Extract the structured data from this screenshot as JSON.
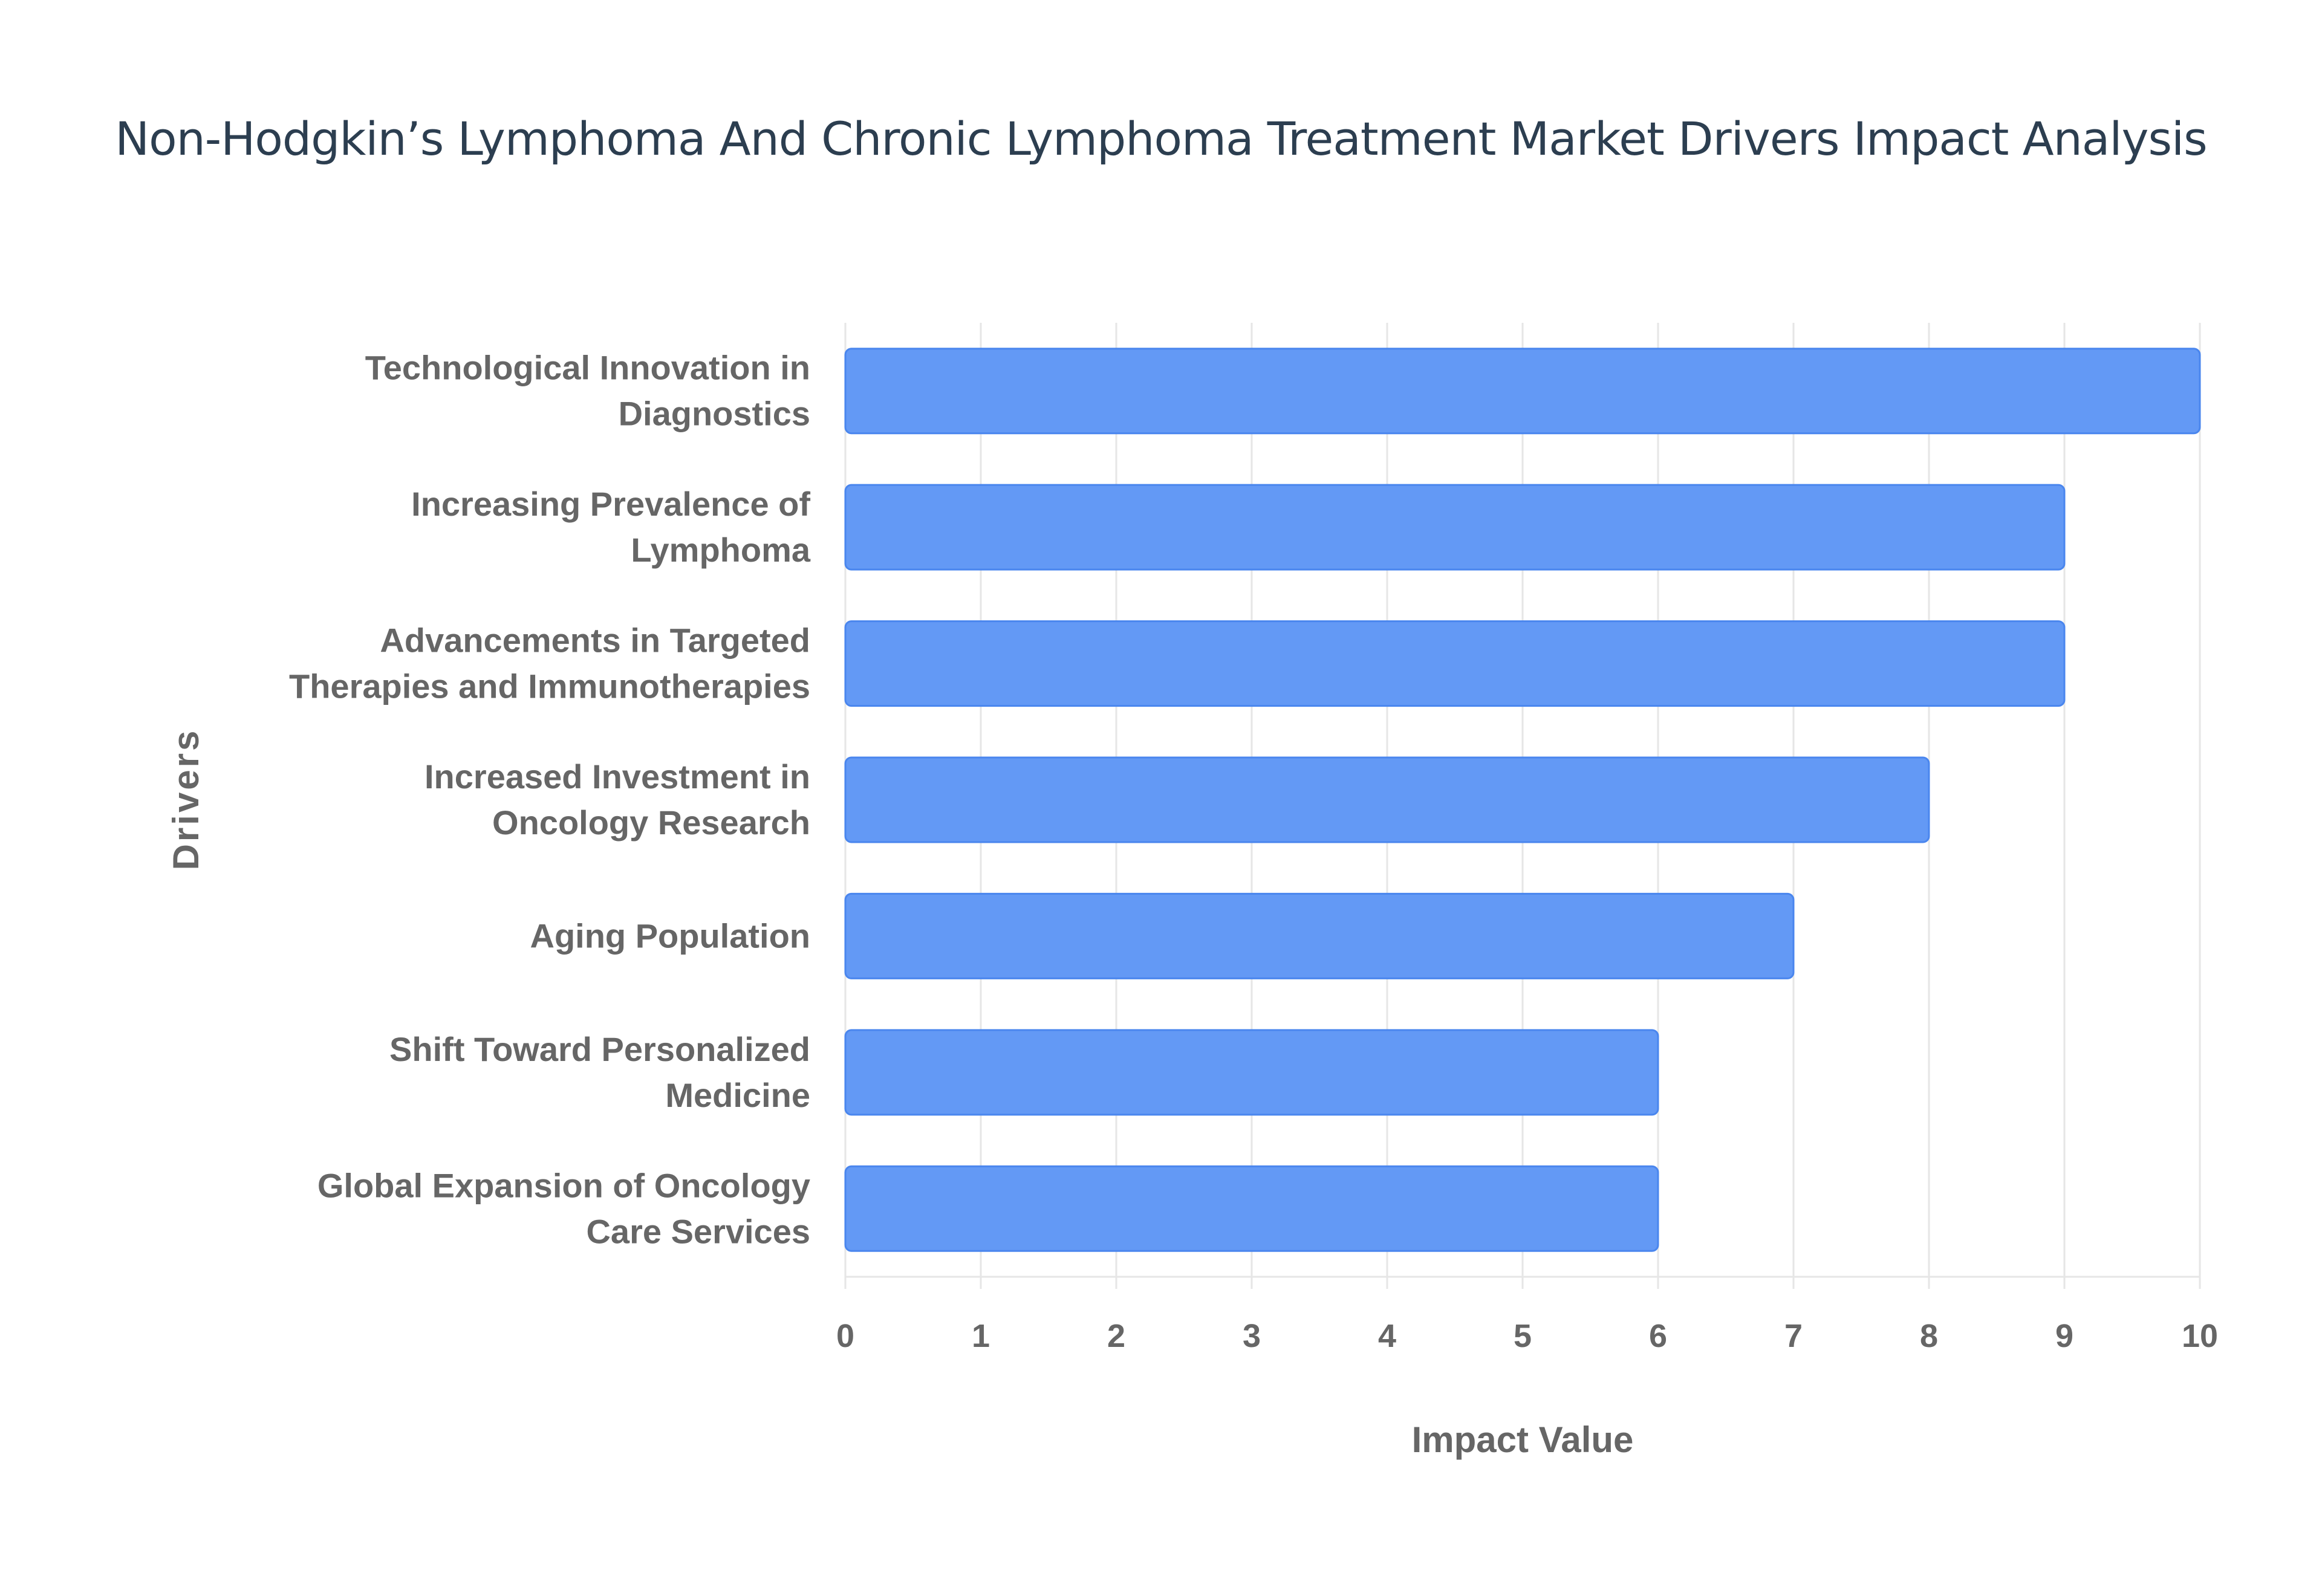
{
  "chart_data": {
    "type": "bar",
    "orientation": "horizontal",
    "title": "Non-Hodgkin’s Lymphoma And Chronic Lymphoma Treatment Market Drivers Impact Analysis",
    "xlabel": "Impact Value",
    "ylabel": "Drivers",
    "categories": [
      [
        "Technological Innovation in",
        "Diagnostics"
      ],
      [
        "Increasing Prevalence of",
        "Lymphoma"
      ],
      [
        "Advancements in Targeted",
        "Therapies and Immunotherapies"
      ],
      [
        "Increased Investment in",
        "Oncology Research"
      ],
      [
        "Aging Population"
      ],
      [
        "Shift Toward Personalized",
        "Medicine"
      ],
      [
        "Global Expansion of Oncology",
        "Care Services"
      ]
    ],
    "values": [
      10,
      9,
      9,
      8,
      7,
      6,
      6
    ],
    "xlim": [
      0,
      10
    ],
    "xticks": [
      "0",
      "1",
      "2",
      "3",
      "4",
      "5",
      "6",
      "7",
      "8",
      "9",
      "10"
    ],
    "grid": true,
    "colors": {
      "bar": "#6399f5",
      "bar_border": "#4a86ee",
      "title": "#2c3e50"
    }
  }
}
